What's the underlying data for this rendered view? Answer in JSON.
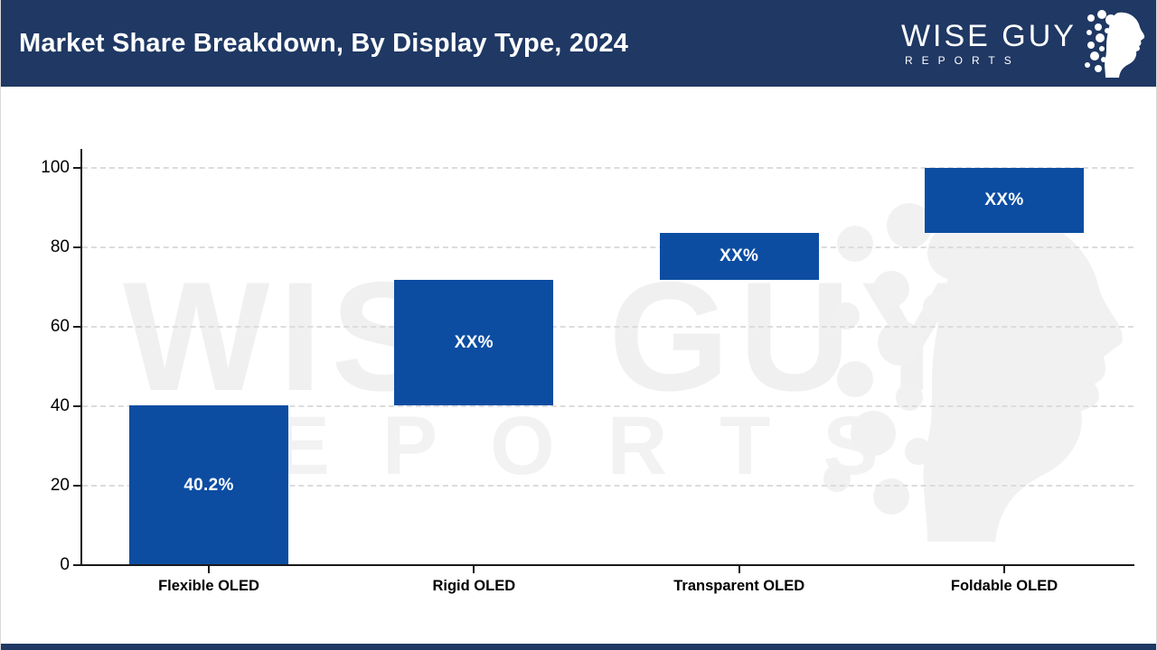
{
  "header": {
    "title": "Market Share Breakdown, By Display Type, 2024",
    "background_color": "#1f3864",
    "logo": {
      "wordmark": "WISE GUY",
      "subtext": "REPORTS"
    }
  },
  "watermark": {
    "line1": "WISE GUY",
    "line2": "REPORTS"
  },
  "chart_data": {
    "type": "bar",
    "subtype": "waterfall",
    "title": "Market Share Breakdown, By Display Type, 2024",
    "categories": [
      "Flexible OLED",
      "Rigid OLED",
      "Transparent OLED",
      "Foldable OLED"
    ],
    "series": [
      {
        "name": "Market share (%)",
        "segments": [
          {
            "category": "Flexible OLED",
            "start": 0,
            "end": 40.2,
            "label": "40.2%"
          },
          {
            "category": "Rigid OLED",
            "start": 40.2,
            "end": 71.8,
            "label": "XX%"
          },
          {
            "category": "Transparent OLED",
            "start": 71.8,
            "end": 83.6,
            "label": "XX%"
          },
          {
            "category": "Foldable OLED",
            "start": 83.6,
            "end": 100,
            "label": "XX%"
          }
        ]
      }
    ],
    "xlabel": "",
    "ylabel": "",
    "ylim": [
      0,
      105
    ],
    "yticks": [
      0,
      20,
      40,
      60,
      80,
      100
    ],
    "grid": "horizontal dashed",
    "legend": "none",
    "bar_color": "#0c4da2",
    "bar_label_color": "#ffffff"
  },
  "footer": {
    "background_color": "#1f3864"
  }
}
